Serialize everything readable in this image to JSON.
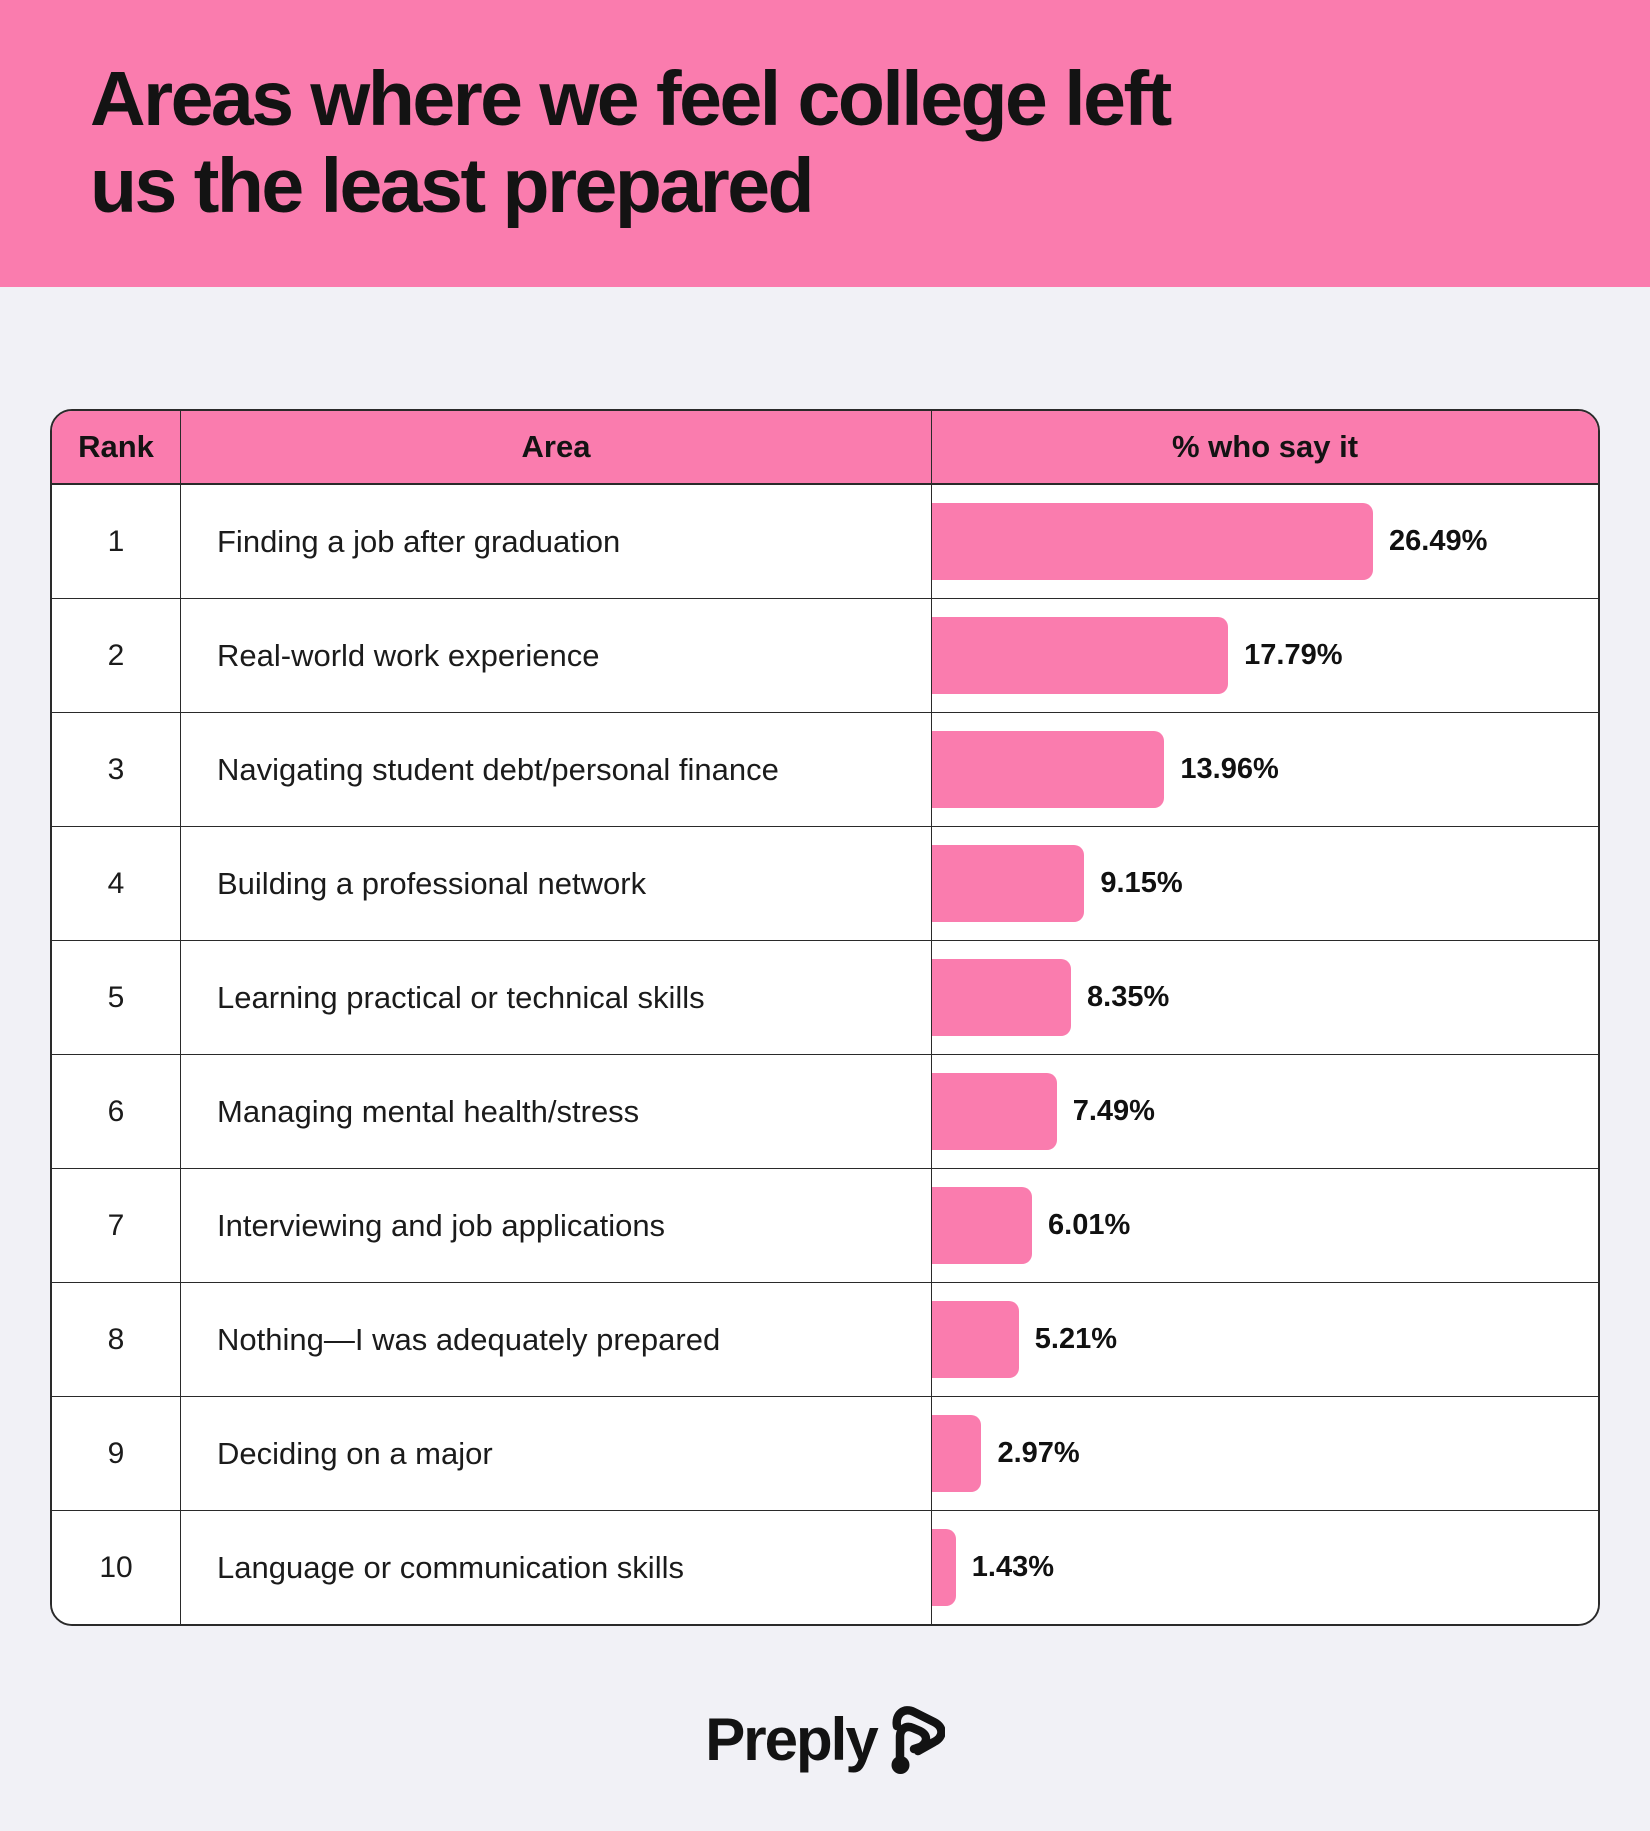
{
  "header": {
    "title_line1": "Areas where we feel college left",
    "title_line2": "us the least prepared"
  },
  "table": {
    "columns": [
      "Rank",
      "Area",
      "% who say it"
    ],
    "rows": [
      {
        "rank": "1",
        "area": "Finding a job after graduation",
        "value": 26.49,
        "label": "26.49%"
      },
      {
        "rank": "2",
        "area": "Real-world work experience",
        "value": 17.79,
        "label": "17.79%"
      },
      {
        "rank": "3",
        "area": "Navigating student debt/personal finance",
        "value": 13.96,
        "label": "13.96%"
      },
      {
        "rank": "4",
        "area": "Building a professional network",
        "value": 9.15,
        "label": "9.15%"
      },
      {
        "rank": "5",
        "area": "Learning practical or technical skills",
        "value": 8.35,
        "label": "8.35%"
      },
      {
        "rank": "6",
        "area": "Managing mental health/stress",
        "value": 7.49,
        "label": "7.49%"
      },
      {
        "rank": "7",
        "area": "Interviewing and job applications",
        "value": 6.01,
        "label": "6.01%"
      },
      {
        "rank": "8",
        "area": "Nothing—I was adequately prepared",
        "value": 5.21,
        "label": "5.21%"
      },
      {
        "rank": "9",
        "area": "Deciding on a major",
        "value": 2.97,
        "label": "2.97%"
      },
      {
        "rank": "10",
        "area": "Language or communication skills",
        "value": 1.43,
        "label": "1.43%"
      }
    ]
  },
  "footer": {
    "brand": "Preply"
  },
  "colors": {
    "pink": "#FA7CAE",
    "background": "#F1F1F6",
    "ink": "#131313"
  },
  "chart_data": {
    "type": "bar",
    "orientation": "horizontal",
    "title": "Areas where we feel college left us the least prepared",
    "categories": [
      "Finding a job after graduation",
      "Real-world work experience",
      "Navigating student debt/personal finance",
      "Building a professional network",
      "Learning practical or technical skills",
      "Managing mental health/stress",
      "Interviewing and job applications",
      "Nothing—I was adequately prepared",
      "Deciding on a major",
      "Language or communication skills"
    ],
    "values": [
      26.49,
      17.79,
      13.96,
      9.15,
      8.35,
      7.49,
      6.01,
      5.21,
      2.97,
      1.43
    ],
    "value_format": "percent",
    "xlabel": "% who say it",
    "ylabel": "Area",
    "xlim": [
      0,
      40
    ],
    "grid": false,
    "legend": false,
    "bar_color": "#FA7CAE"
  }
}
